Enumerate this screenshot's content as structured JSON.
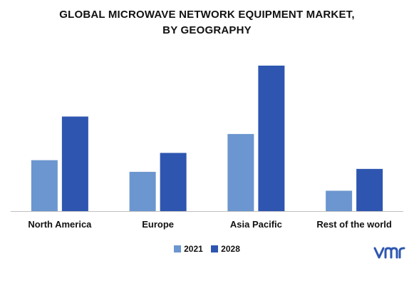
{
  "chart_data": {
    "type": "bar",
    "title_lines": [
      "GLOBAL MICROWAVE NETWORK EQUIPMENT MARKET,",
      "BY GEOGRAPHY"
    ],
    "categories": [
      "North America",
      "Europe",
      "Asia Pacific",
      "Rest of the world"
    ],
    "series": [
      {
        "name": "2021",
        "values": [
          3.5,
          2.7,
          5.3,
          1.4
        ],
        "color": "#6b96cf"
      },
      {
        "name": "2028",
        "values": [
          6.5,
          4.0,
          10.0,
          2.9
        ],
        "color": "#2e56b0"
      }
    ],
    "ylim": [
      0,
      10.5
    ],
    "y_axis_visible": false,
    "grid": false,
    "legend_position": "bottom"
  },
  "logo": {
    "name": "vmr-logo",
    "color": "#2e56b0"
  }
}
